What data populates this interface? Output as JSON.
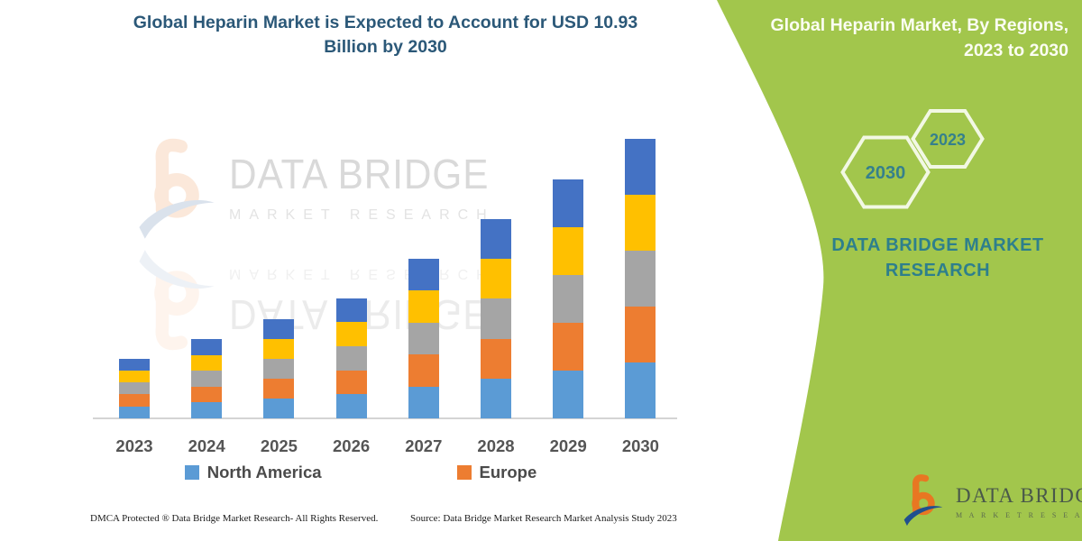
{
  "page": {
    "background": "#ffffff"
  },
  "header": {
    "title_line1": "Global Heparin Market is Expected to Account for USD 10.93",
    "title_line2": "Billion by 2030",
    "title_color": "#2b5878"
  },
  "chart_data": {
    "type": "bar",
    "stacked": true,
    "title": "Global Heparin Market is Expected to Account for USD 10.93 Billion by 2030",
    "unit": "USD Billion",
    "categories": [
      "2023",
      "2024",
      "2025",
      "2026",
      "2027",
      "2028",
      "2029",
      "2030"
    ],
    "totals": [
      2.36,
      3.1,
      3.88,
      4.68,
      6.26,
      7.81,
      9.36,
      10.93
    ],
    "series": [
      {
        "name": "North America",
        "color": "#5B9BD5",
        "values": [
          0.47,
          0.62,
          0.78,
          0.94,
          1.25,
          1.56,
          1.87,
          2.19
        ]
      },
      {
        "name": "Europe",
        "color": "#ED7D31",
        "values": [
          0.47,
          0.62,
          0.78,
          0.94,
          1.25,
          1.56,
          1.87,
          2.19
        ]
      },
      {
        "name": "(unlabeled gray series)",
        "color": "#A5A5A5",
        "values": [
          0.47,
          0.62,
          0.78,
          0.94,
          1.25,
          1.56,
          1.87,
          2.19
        ]
      },
      {
        "name": "(unlabeled yellow series)",
        "color": "#FFC000",
        "values": [
          0.47,
          0.62,
          0.78,
          0.94,
          1.25,
          1.56,
          1.87,
          2.19
        ]
      },
      {
        "name": "(unlabeled blue series)",
        "color": "#4472C4",
        "values": [
          0.47,
          0.62,
          0.78,
          0.94,
          1.25,
          1.56,
          1.87,
          2.19
        ]
      }
    ],
    "legend": [
      {
        "label": "North America",
        "color": "#5B9BD5"
      },
      {
        "label": "Europe",
        "color": "#ED7D31"
      }
    ],
    "xlabel": "",
    "ylabel": "",
    "ylim": [
      0,
      11.5
    ],
    "gridlines": false,
    "y_axis_visible": false,
    "legend_position": "bottom"
  },
  "watermark": {
    "brand": "DATA BRIDGE",
    "sub": "MARKET RESEARCH"
  },
  "side_panel": {
    "bg_color": "#a2c64c",
    "accent_color": "#2e7f8c",
    "title_line1": "Global Heparin Market, By Regions,",
    "title_line2": "2023 to 2030",
    "hex_large": "2030",
    "hex_small": "2023",
    "brand_line1": "DATA BRIDGE MARKET",
    "brand_line2": "RESEARCH"
  },
  "footer": {
    "left": "DMCA Protected ® Data Bridge Market Research-  All Rights Reserved.",
    "right": "Source: Data Bridge Market Research  Market Analysis Study 2023"
  },
  "corner_logo": {
    "brand": "DATA BRIDGE",
    "sub": "M A R K E T    R E S E A R C H"
  }
}
